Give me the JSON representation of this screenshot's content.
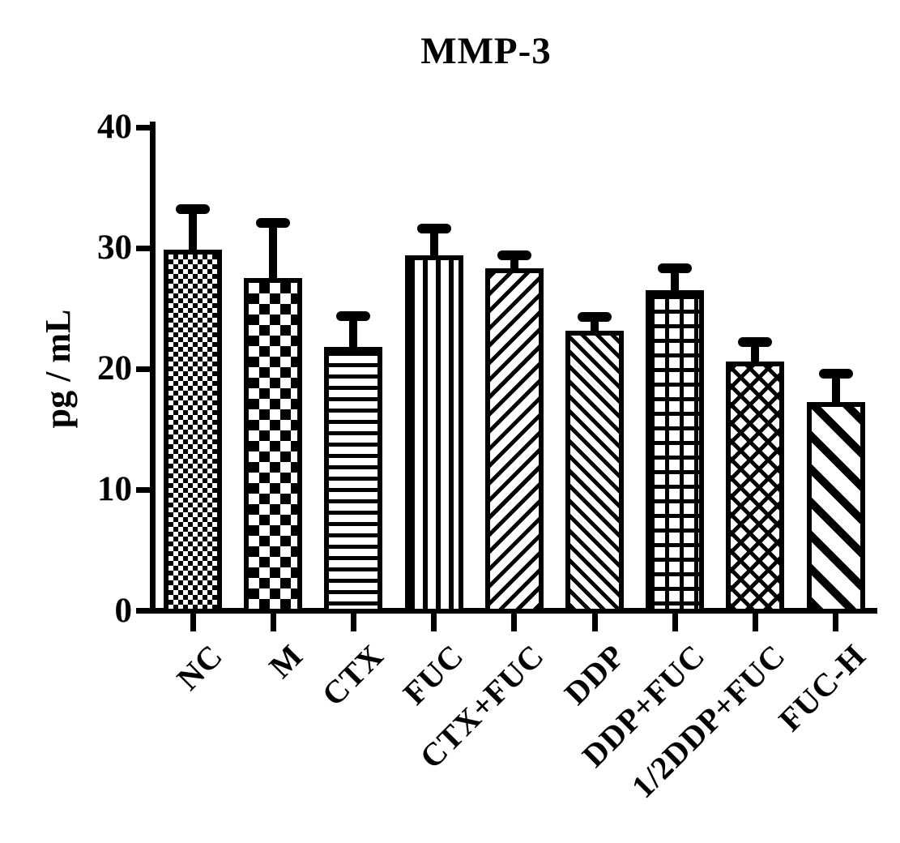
{
  "chart_data": {
    "type": "bar",
    "title": "MMP-3",
    "ylabel": "pg / mL",
    "xlabel": "",
    "ylim": [
      0,
      40
    ],
    "yticks": [
      0,
      10,
      20,
      30,
      40
    ],
    "categories": [
      "NC",
      "M",
      "CTX",
      "FUC",
      "CTX+FUC",
      "DDP",
      "DDP+FUC",
      "1/2DDP+FUC",
      "FUC-H"
    ],
    "values": [
      29.9,
      27.5,
      21.8,
      29.4,
      28.3,
      23.2,
      26.5,
      20.6,
      17.3
    ],
    "errors_upper": [
      3.3,
      4.6,
      2.6,
      2.2,
      1.1,
      1.1,
      1.8,
      1.6,
      2.3
    ],
    "error_bars": "upper-only-with-caps",
    "bar_patterns": [
      "fine-checker",
      "coarse-checker",
      "horizontal-lines",
      "vertical-lines",
      "forward-diagonal",
      "backward-diagonal",
      "square-grid",
      "diamond-weave",
      "wide-backward-diagonal"
    ],
    "bar_fill": "#ffffff",
    "pattern_color": "#000000",
    "axis_color": "#000000",
    "background_color": "#ffffff",
    "grid": false,
    "legend": null,
    "x_tick_label_rotation": 45
  }
}
